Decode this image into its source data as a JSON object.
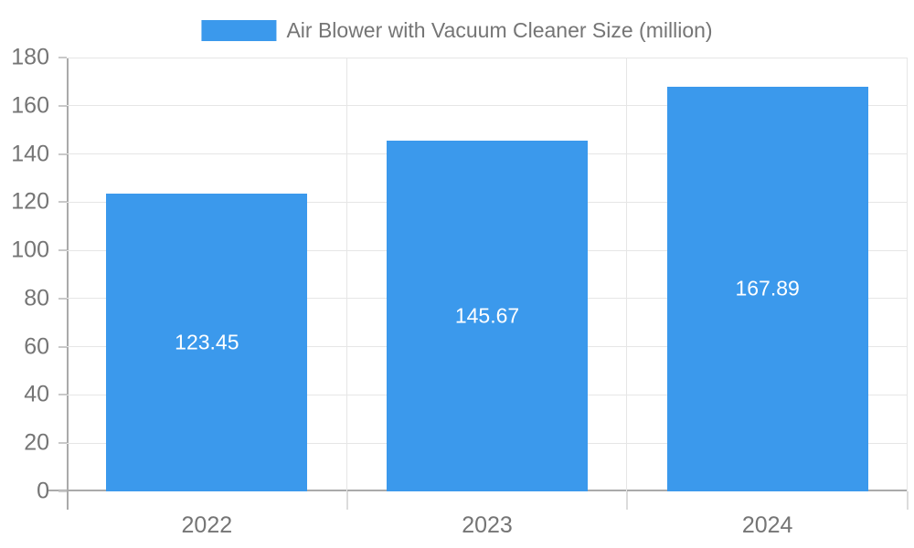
{
  "chart_data": {
    "type": "bar",
    "title": "Air Blower with Vacuum Cleaner Size (million)",
    "categories": [
      "2022",
      "2023",
      "2024"
    ],
    "values": [
      123.45,
      145.67,
      167.89
    ],
    "value_labels": [
      "123.45",
      "145.67",
      "167.89"
    ],
    "xlabel": "",
    "ylabel": "",
    "ylim": [
      0,
      180
    ],
    "ytick_step": 20,
    "grid": "on",
    "legend_position": "top-center",
    "value_label_position": "inside-center"
  },
  "colors": {
    "bar": "#3B99EC",
    "axis_line": "#AAAAAA",
    "gridline": "#E6E6E6",
    "ytick": "#C9C9C9",
    "xtick": "#DCDCDC",
    "tick_label": "#757575",
    "legend_label": "#757575",
    "value_label": "#FFFFFF",
    "background": "#FFFFFF"
  }
}
